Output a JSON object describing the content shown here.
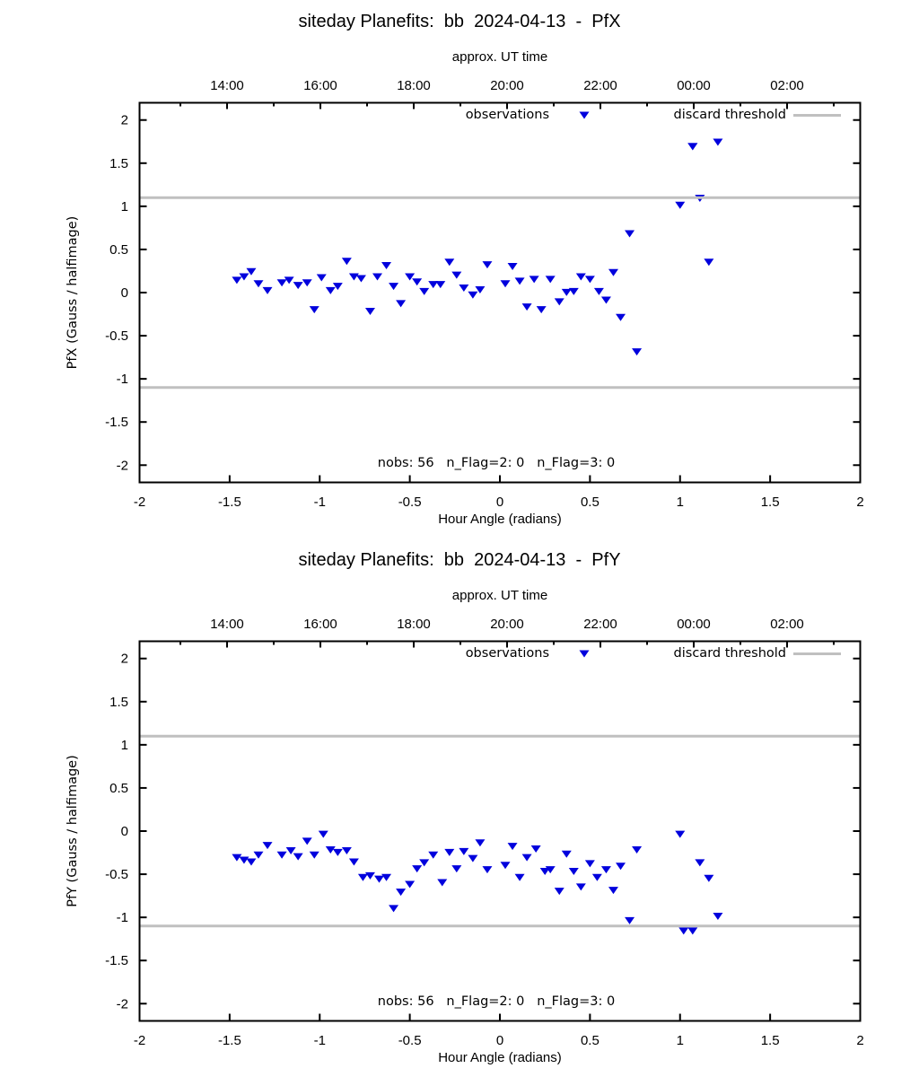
{
  "colors": {
    "observation_marker": "#0000dd",
    "discard_threshold_line": "#c0c0c0",
    "axis": "#000000",
    "background": "#ffffff"
  },
  "chart_data": [
    {
      "type": "scatter",
      "title": "siteday Planefits:  bb  2024-04-13  -  PfX",
      "top_axis": {
        "label": "approx. UT time",
        "tick_labels": [
          "14:00",
          "16:00",
          "18:00",
          "20:00",
          "22:00",
          "00:00",
          "02:00"
        ]
      },
      "xlabel": "Hour Angle (radians)",
      "ylabel": "PfX (Gauss / halfimage)",
      "x_tick_labels": [
        "-2",
        "-1.5",
        "-1",
        "-0.5",
        "0",
        "0.5",
        "1",
        "1.5",
        "2"
      ],
      "y_tick_labels": [
        "2",
        "1.5",
        "1",
        "0.5",
        "0",
        "-0.5",
        "-1",
        "-1.5",
        "-2"
      ],
      "x_tick_values": [
        -2,
        -1.5,
        -1,
        -0.5,
        0,
        0.5,
        1,
        1.5,
        2
      ],
      "y_tick_values": [
        2,
        1.5,
        1,
        0.5,
        0,
        -0.5,
        -1,
        -1.5,
        -2
      ],
      "xlim": [
        -2,
        2
      ],
      "ylim": [
        -2.2,
        2.2
      ],
      "grid": "off",
      "legend": {
        "position": "top-inside",
        "observations": "observations",
        "discard_threshold": "discard threshold"
      },
      "discard_threshold": 1.1,
      "stats": "nobs: 56   n_Flag=2: 0   n_Flag=3: 0",
      "series": [
        {
          "name": "observations",
          "marker": "triangle-down",
          "points": [
            [
              -1.46,
              0.15
            ],
            [
              -1.42,
              0.19
            ],
            [
              -1.38,
              0.25
            ],
            [
              -1.34,
              0.11
            ],
            [
              -1.29,
              0.03
            ],
            [
              -1.21,
              0.12
            ],
            [
              -1.17,
              0.15
            ],
            [
              -1.12,
              0.09
            ],
            [
              -1.07,
              0.12
            ],
            [
              -1.03,
              -0.19
            ],
            [
              -0.99,
              0.18
            ],
            [
              -0.94,
              0.03
            ],
            [
              -0.9,
              0.08
            ],
            [
              -0.85,
              0.37
            ],
            [
              -0.81,
              0.19
            ],
            [
              -0.77,
              0.17
            ],
            [
              -0.72,
              -0.21
            ],
            [
              -0.68,
              0.19
            ],
            [
              -0.63,
              0.32
            ],
            [
              -0.59,
              0.08
            ],
            [
              -0.55,
              -0.12
            ],
            [
              -0.5,
              0.19
            ],
            [
              -0.46,
              0.13
            ],
            [
              -0.42,
              0.02
            ],
            [
              -0.37,
              0.1
            ],
            [
              -0.33,
              0.1
            ],
            [
              -0.28,
              0.36
            ],
            [
              -0.24,
              0.21
            ],
            [
              -0.2,
              0.06
            ],
            [
              -0.15,
              -0.02
            ],
            [
              -0.11,
              0.04
            ],
            [
              -0.07,
              0.33
            ],
            [
              0.03,
              0.11
            ],
            [
              0.07,
              0.31
            ],
            [
              0.11,
              0.14
            ],
            [
              0.15,
              -0.16
            ],
            [
              0.19,
              0.16
            ],
            [
              0.23,
              -0.19
            ],
            [
              0.28,
              0.16
            ],
            [
              0.33,
              -0.1
            ],
            [
              0.37,
              0.01
            ],
            [
              0.41,
              0.02
            ],
            [
              0.45,
              0.19
            ],
            [
              0.5,
              0.16
            ],
            [
              0.55,
              0.02
            ],
            [
              0.59,
              -0.08
            ],
            [
              0.63,
              0.24
            ],
            [
              0.67,
              -0.28
            ],
            [
              0.72,
              0.69
            ],
            [
              0.76,
              -0.68
            ],
            [
              1.0,
              1.02
            ],
            [
              1.07,
              1.7
            ],
            [
              1.07,
              1.7
            ],
            [
              1.11,
              1.1
            ],
            [
              1.16,
              0.36
            ],
            [
              1.21,
              1.75
            ]
          ]
        }
      ]
    },
    {
      "type": "scatter",
      "title": "siteday Planefits:  bb  2024-04-13  -  PfY",
      "top_axis": {
        "label": "approx. UT time",
        "tick_labels": [
          "14:00",
          "16:00",
          "18:00",
          "20:00",
          "22:00",
          "00:00",
          "02:00"
        ]
      },
      "xlabel": "Hour Angle (radians)",
      "ylabel": "PfY (Gauss / halfimage)",
      "x_tick_labels": [
        "-2",
        "-1.5",
        "-1",
        "-0.5",
        "0",
        "0.5",
        "1",
        "1.5",
        "2"
      ],
      "y_tick_labels": [
        "2",
        "1.5",
        "1",
        "0.5",
        "0",
        "-0.5",
        "-1",
        "-1.5",
        "-2"
      ],
      "x_tick_values": [
        -2,
        -1.5,
        -1,
        -0.5,
        0,
        0.5,
        1,
        1.5,
        2
      ],
      "y_tick_values": [
        2,
        1.5,
        1,
        0.5,
        0,
        -0.5,
        -1,
        -1.5,
        -2
      ],
      "xlim": [
        -2,
        2
      ],
      "ylim": [
        -2.2,
        2.2
      ],
      "grid": "off",
      "legend": {
        "position": "top-inside",
        "observations": "observations",
        "discard_threshold": "discard threshold"
      },
      "discard_threshold": 1.1,
      "stats": "nobs: 56   n_Flag=2: 0   n_Flag=3: 0",
      "series": [
        {
          "name": "observations",
          "marker": "triangle-down",
          "points": [
            [
              -1.46,
              -0.3
            ],
            [
              -1.42,
              -0.33
            ],
            [
              -1.38,
              -0.35
            ],
            [
              -1.34,
              -0.27
            ],
            [
              -1.29,
              -0.16
            ],
            [
              -1.21,
              -0.27
            ],
            [
              -1.16,
              -0.22
            ],
            [
              -1.12,
              -0.29
            ],
            [
              -1.07,
              -0.11
            ],
            [
              -1.03,
              -0.27
            ],
            [
              -0.98,
              -0.03
            ],
            [
              -0.94,
              -0.21
            ],
            [
              -0.9,
              -0.24
            ],
            [
              -0.85,
              -0.22
            ],
            [
              -0.81,
              -0.35
            ],
            [
              -0.76,
              -0.53
            ],
            [
              -0.72,
              -0.51
            ],
            [
              -0.67,
              -0.55
            ],
            [
              -0.63,
              -0.53
            ],
            [
              -0.59,
              -0.89
            ],
            [
              -0.55,
              -0.7
            ],
            [
              -0.5,
              -0.61
            ],
            [
              -0.46,
              -0.43
            ],
            [
              -0.42,
              -0.36
            ],
            [
              -0.37,
              -0.27
            ],
            [
              -0.32,
              -0.59
            ],
            [
              -0.28,
              -0.24
            ],
            [
              -0.24,
              -0.43
            ],
            [
              -0.2,
              -0.23
            ],
            [
              -0.15,
              -0.31
            ],
            [
              -0.11,
              -0.13
            ],
            [
              -0.07,
              -0.44
            ],
            [
              0.03,
              -0.39
            ],
            [
              0.07,
              -0.17
            ],
            [
              0.11,
              -0.53
            ],
            [
              0.15,
              -0.3
            ],
            [
              0.2,
              -0.2
            ],
            [
              0.25,
              -0.46
            ],
            [
              0.28,
              -0.44
            ],
            [
              0.33,
              -0.69
            ],
            [
              0.37,
              -0.26
            ],
            [
              0.41,
              -0.46
            ],
            [
              0.45,
              -0.64
            ],
            [
              0.5,
              -0.37
            ],
            [
              0.54,
              -0.53
            ],
            [
              0.59,
              -0.44
            ],
            [
              0.63,
              -0.68
            ],
            [
              0.67,
              -0.4
            ],
            [
              0.72,
              -1.03
            ],
            [
              0.76,
              -0.21
            ],
            [
              1.0,
              -0.03
            ],
            [
              1.02,
              -1.15
            ],
            [
              1.07,
              -1.15
            ],
            [
              1.11,
              -0.36
            ],
            [
              1.16,
              -0.54
            ],
            [
              1.21,
              -0.98
            ]
          ]
        }
      ]
    }
  ]
}
